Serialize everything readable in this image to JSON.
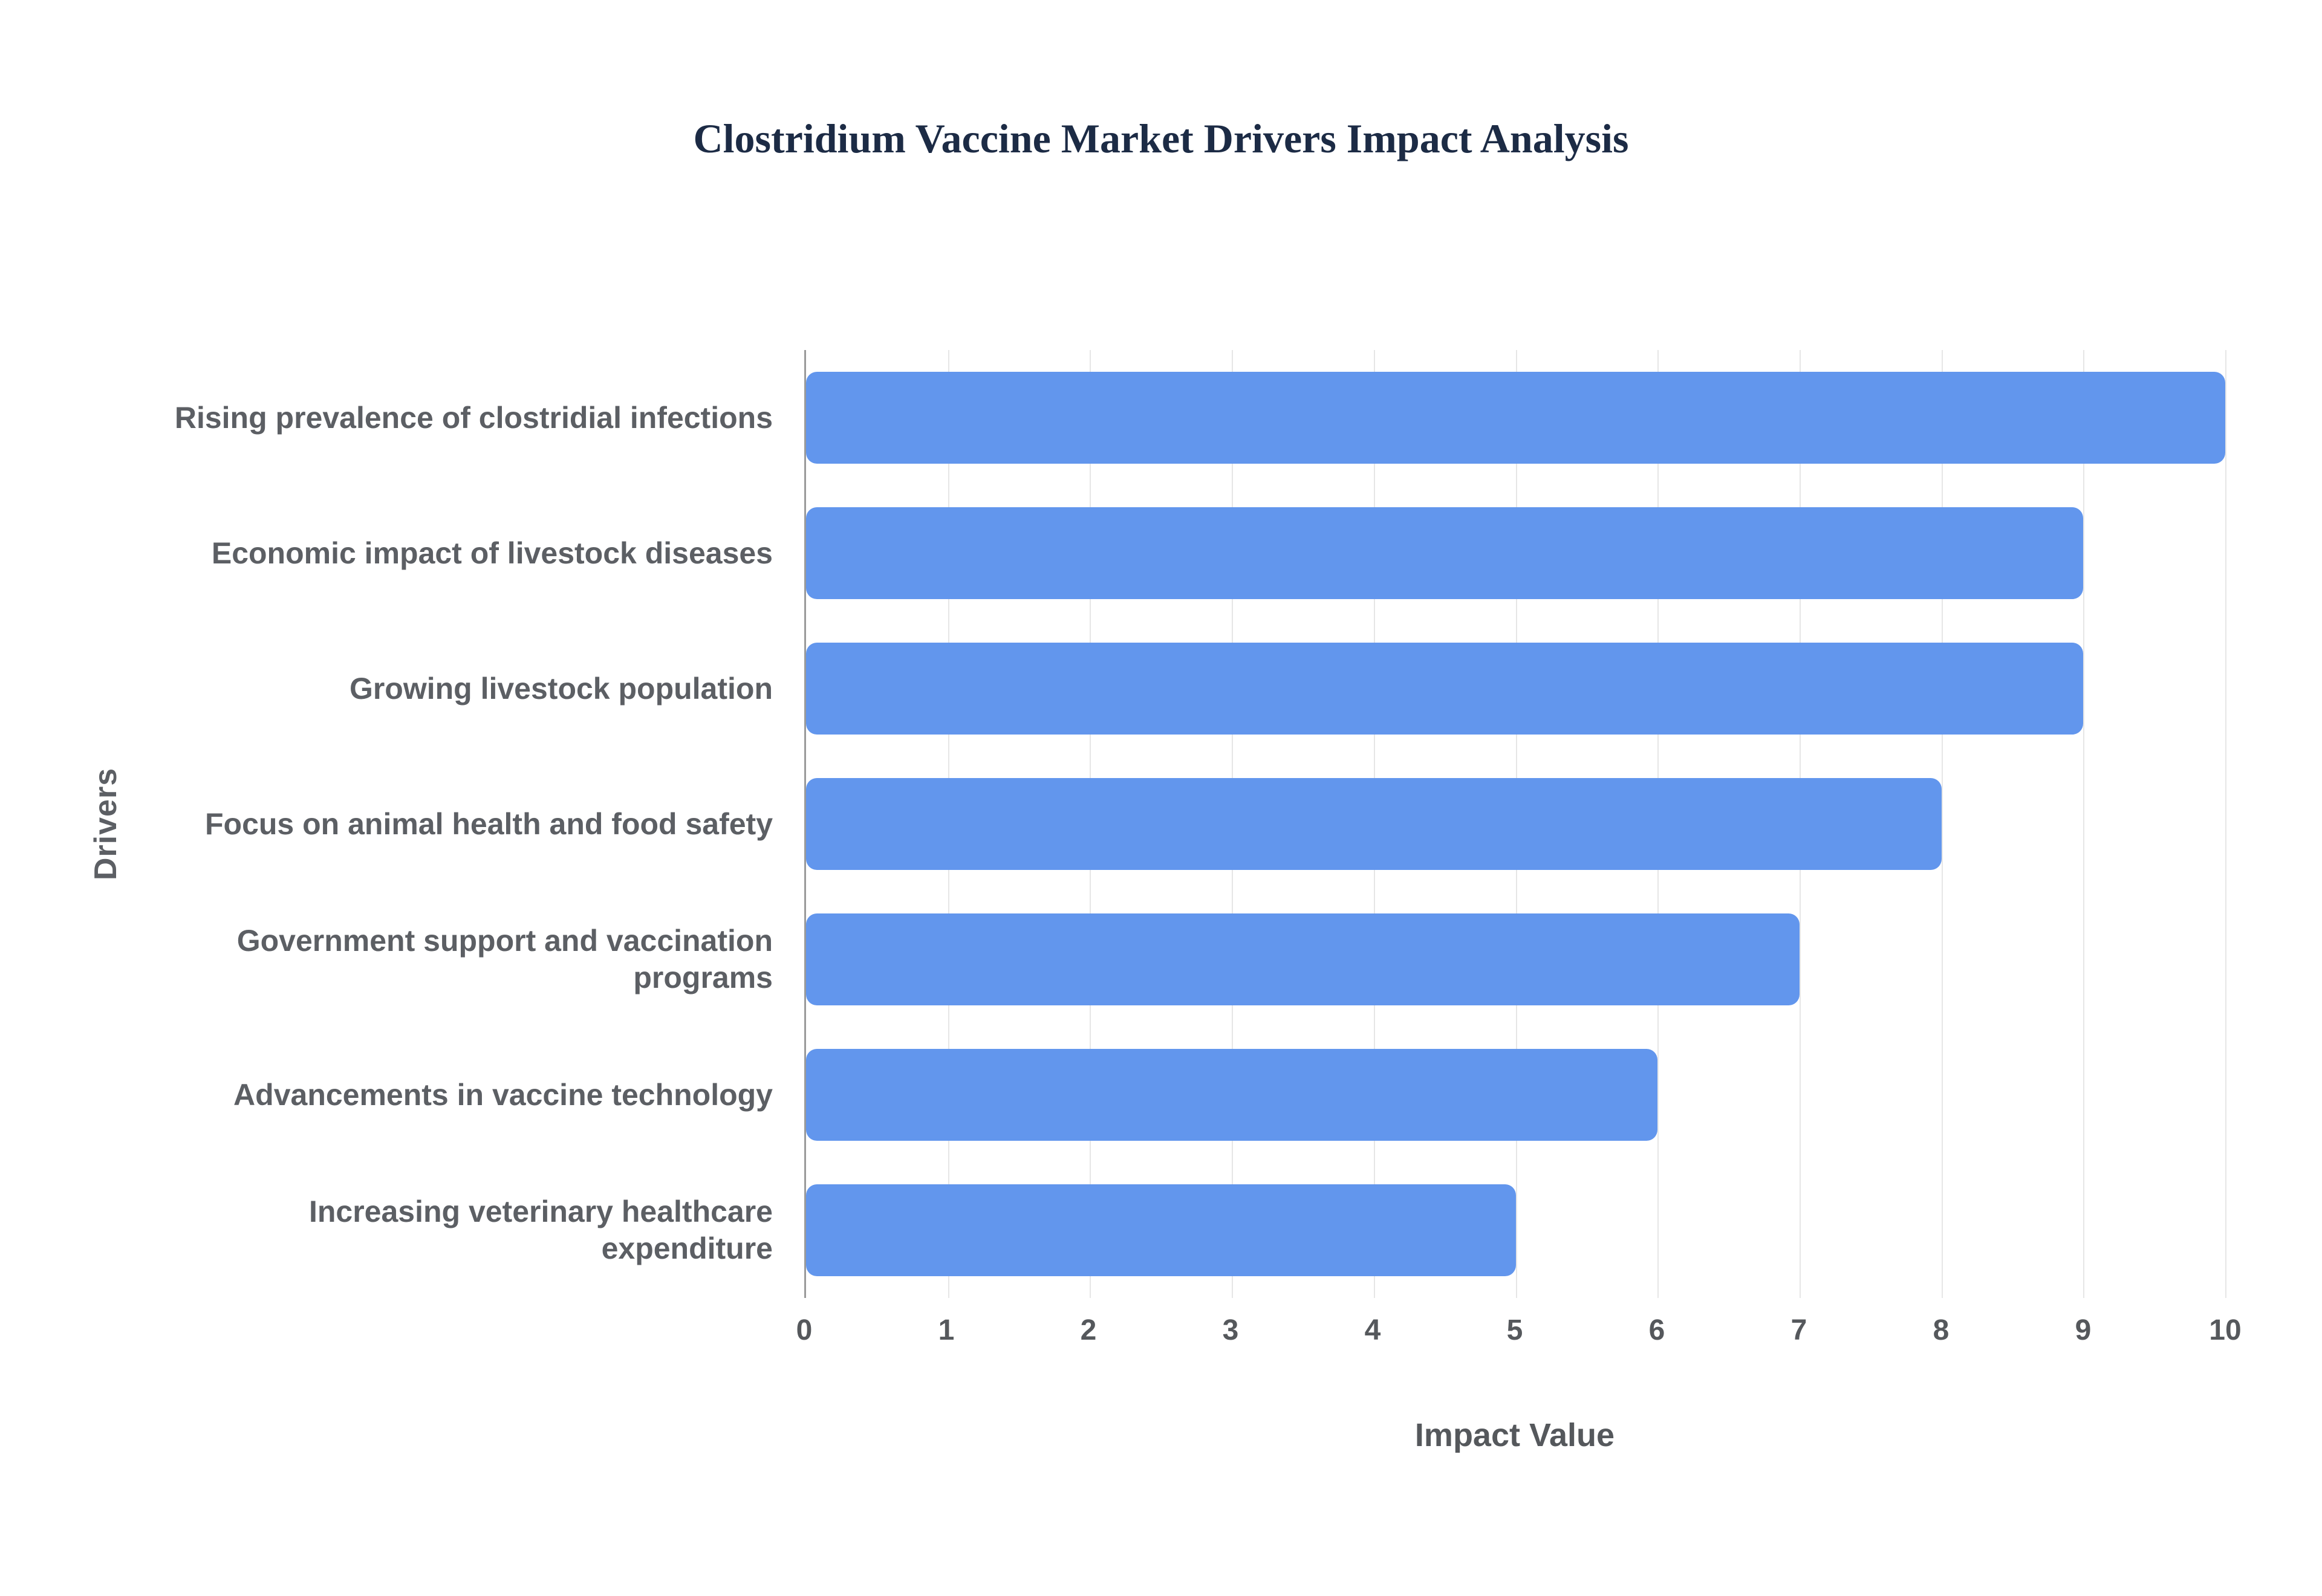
{
  "chart_data": {
    "type": "bar",
    "orientation": "horizontal",
    "title": "Clostridium Vaccine Market Drivers Impact Analysis",
    "categories": [
      "Rising prevalence of clostridial infections",
      "Economic impact of livestock diseases",
      "Growing livestock population",
      "Focus on animal health and food safety",
      "Government support and vaccination programs",
      "Advancements in vaccine technology",
      "Increasing veterinary healthcare expenditure"
    ],
    "values": [
      10,
      9,
      9,
      8,
      7,
      6,
      5
    ],
    "xlabel": "Impact Value",
    "ylabel": "Drivers",
    "xlim": [
      0,
      10
    ],
    "xticks": [
      0,
      1,
      2,
      3,
      4,
      5,
      6,
      7,
      8,
      9,
      10
    ],
    "grid": true,
    "legend": false,
    "bar_color": "#6296ED",
    "title_color": "#1C2B45",
    "label_color": "#5C5F64",
    "tick_color": "#55585C",
    "grid_color": "#E6E6E6",
    "axisline_color": "#9A9A9A"
  }
}
